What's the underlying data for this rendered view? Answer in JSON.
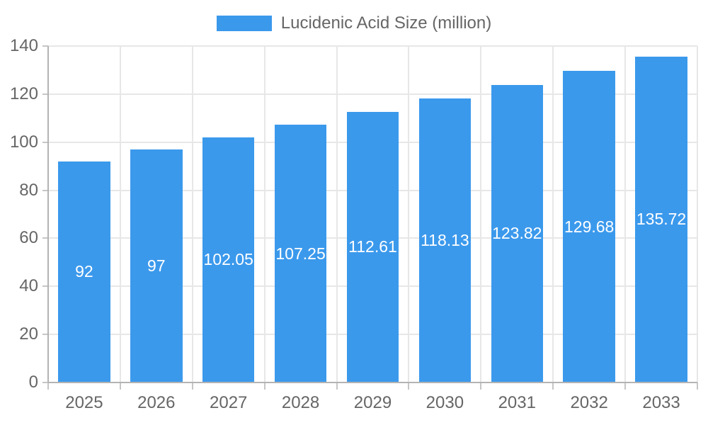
{
  "colors": {
    "bar": "#3B99EC",
    "grid": "#E7E7E7",
    "axis_line": "#B3B3B3",
    "tick_mark": "#C6C6C6",
    "axis_text": "#666666",
    "bar_label_text": "#FFFFFF",
    "background": "#FFFFFF"
  },
  "legend": {
    "label": "Lucidenic Acid Size (million)"
  },
  "chart_data": {
    "type": "bar",
    "title": "",
    "legend": "Lucidenic Acid Size (million)",
    "legend_position": "top-center",
    "categories": [
      "2025",
      "2026",
      "2027",
      "2028",
      "2029",
      "2030",
      "2031",
      "2032",
      "2033"
    ],
    "series": [
      {
        "name": "Lucidenic Acid Size (million)",
        "values": [
          92,
          97,
          102.05,
          107.25,
          112.61,
          118.13,
          123.82,
          129.68,
          135.72
        ],
        "labels": [
          "92",
          "97",
          "102.05",
          "107.25",
          "112.61",
          "118.13",
          "123.82",
          "129.68",
          "135.72"
        ]
      }
    ],
    "xlabel": "",
    "ylabel": "",
    "ylim": [
      0,
      140
    ],
    "yticks": [
      0,
      20,
      40,
      60,
      80,
      100,
      120,
      140
    ],
    "ytick_step": 20,
    "grid": true,
    "bar_label_position": "center"
  }
}
